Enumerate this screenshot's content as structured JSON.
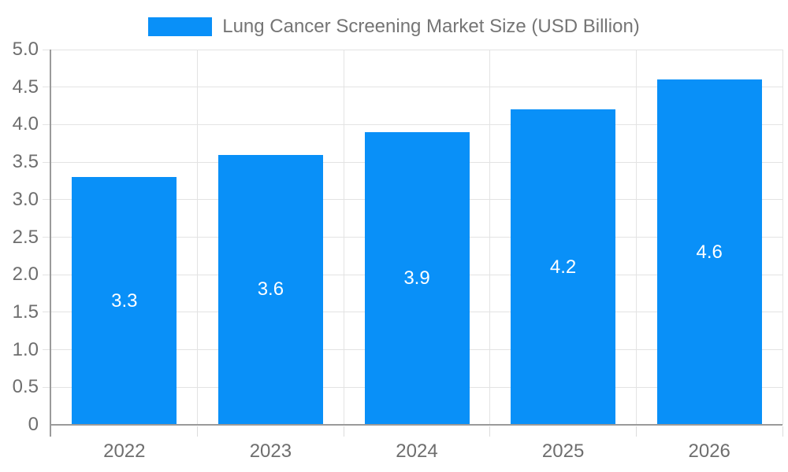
{
  "chart_data": {
    "type": "bar",
    "title": "Lung Cancer Screening Market Size (USD Billion)",
    "categories": [
      "2022",
      "2023",
      "2024",
      "2025",
      "2026"
    ],
    "values": [
      3.3,
      3.6,
      3.9,
      4.2,
      4.6
    ],
    "value_labels": [
      "3.3",
      "3.6",
      "3.9",
      "4.2",
      "4.6"
    ],
    "xlabel": "",
    "ylabel": "",
    "ylim": [
      0,
      5
    ],
    "ytick_step": 0.5,
    "ytick_labels": [
      "0",
      "0.5",
      "1.0",
      "1.5",
      "2.0",
      "2.5",
      "3.0",
      "3.5",
      "4.0",
      "4.5",
      "5.0"
    ],
    "grid": true,
    "legend_position": "top-center",
    "bar_color": "#0990F8",
    "bar_label_color": "#ffffff",
    "axis_color": "#9a9a9a",
    "grid_color": "#e3e3e3",
    "tick_text_color": "#6e6e6e",
    "legend_text_color": "#757575"
  }
}
